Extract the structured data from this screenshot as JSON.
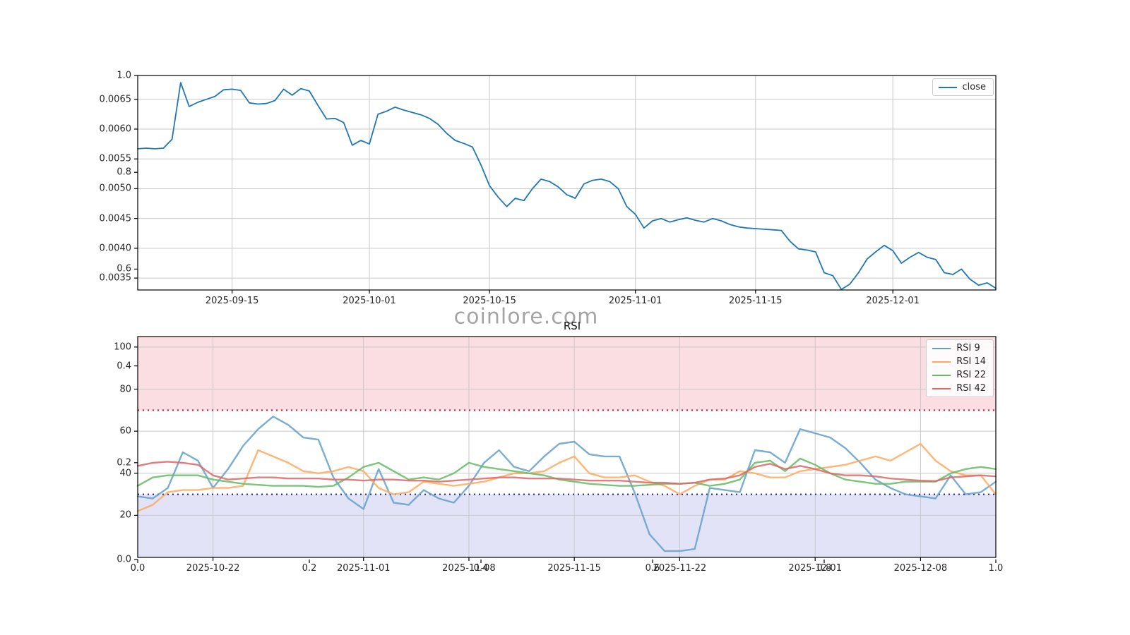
{
  "watermark": "coinlore.com",
  "overlay_axis": {
    "y_tick_labels": [
      "1.0",
      "0.8",
      "0.6",
      "0.4",
      "0.2",
      "0.0"
    ],
    "x_tick_labels": [
      "0.0",
      "0.2",
      "0.4",
      "0.6",
      "0.8",
      "1.0"
    ]
  },
  "chart_data": [
    {
      "type": "line",
      "title": "",
      "legend_position": "upper right",
      "x_start_date": "2025-09-04",
      "x_end_date": "2025-12-13",
      "x_tick_labels": [
        "2025-09-15",
        "2025-10-01",
        "2025-10-15",
        "2025-11-01",
        "2025-11-15",
        "2025-12-01"
      ],
      "x_tick_days": [
        11,
        27,
        41,
        58,
        72,
        88
      ],
      "y_tick_labels": [
        "0.0065",
        "0.0060",
        "0.0055",
        "0.0050",
        "0.0045",
        "0.0040",
        "0.0035"
      ],
      "y_tick_values": [
        0.0065,
        0.006,
        0.0055,
        0.005,
        0.0045,
        0.004,
        0.0035
      ],
      "ylim": [
        0.0033,
        0.0069
      ],
      "grid": true,
      "series": [
        {
          "name": "close",
          "color": "#1f77b4",
          "values": [
            0.00567,
            0.00568,
            0.00567,
            0.00568,
            0.00583,
            0.00678,
            0.00638,
            0.00645,
            0.0065,
            0.00655,
            0.00666,
            0.00667,
            0.00665,
            0.00644,
            0.00642,
            0.00643,
            0.00648,
            0.00667,
            0.00657,
            0.00668,
            0.00664,
            0.0064,
            0.00617,
            0.00618,
            0.00611,
            0.00573,
            0.00581,
            0.00575,
            0.00625,
            0.0063,
            0.00637,
            0.00632,
            0.00628,
            0.00624,
            0.00618,
            0.00608,
            0.00593,
            0.00581,
            0.00576,
            0.0057,
            0.0054,
            0.00505,
            0.00486,
            0.0047,
            0.00484,
            0.0048,
            0.005,
            0.00516,
            0.00512,
            0.00503,
            0.0049,
            0.00484,
            0.00508,
            0.00514,
            0.00516,
            0.00512,
            0.005,
            0.0047,
            0.00457,
            0.00434,
            0.00446,
            0.0045,
            0.00444,
            0.00448,
            0.00451,
            0.00447,
            0.00444,
            0.0045,
            0.00446,
            0.0044,
            0.00436,
            0.00434,
            0.00433,
            0.00432,
            0.00431,
            0.0043,
            0.00412,
            0.00399,
            0.00397,
            0.00394,
            0.00359,
            0.00354,
            0.00331,
            0.0034,
            0.00359,
            0.00382,
            0.00394,
            0.00405,
            0.00396,
            0.00375,
            0.00385,
            0.00393,
            0.00385,
            0.00381,
            0.00359,
            0.00356,
            0.00365,
            0.00348,
            0.00338,
            0.00342,
            0.00333
          ]
        }
      ]
    },
    {
      "type": "line",
      "title": "RSI",
      "legend_position": "upper right",
      "x_start_date": "2025-10-17",
      "x_end_date": "2025-12-13",
      "x_tick_labels": [
        "2025-10-22",
        "2025-11-01",
        "2025-11-08",
        "2025-11-15",
        "2025-11-22",
        "2025-12-01",
        "2025-12-08"
      ],
      "x_tick_days": [
        5,
        15,
        22,
        29,
        36,
        45,
        52
      ],
      "y_tick_labels": [
        "100",
        "80",
        "60",
        "40",
        "20"
      ],
      "y_tick_values": [
        100,
        80,
        60,
        40,
        20
      ],
      "ylim": [
        0,
        105
      ],
      "grid": true,
      "overbought_level": 70,
      "oversold_level": 30,
      "overbought_line_color": "#cc1133",
      "oversold_line_color": "#1a1aae",
      "bands": [
        {
          "name": "overbought-band",
          "from": 70,
          "to": 105,
          "color": "#fbdee2"
        },
        {
          "name": "oversold-band",
          "from": 0,
          "to": 30,
          "color": "#e3e3f8"
        }
      ],
      "series": [
        {
          "name": "RSI 9",
          "color": "#62a0ca",
          "values": [
            29,
            28,
            33,
            50,
            46,
            33,
            42,
            53,
            61,
            67,
            63,
            57,
            56,
            38,
            28,
            23,
            42,
            26,
            25,
            32,
            28,
            26,
            34,
            45,
            51,
            43,
            41,
            48,
            54,
            55,
            49,
            48,
            48,
            31,
            11,
            3,
            3,
            4,
            33,
            32,
            31,
            51,
            50,
            45,
            61,
            59,
            57,
            52,
            45,
            37,
            33,
            30,
            29,
            28,
            39,
            30,
            31,
            36
          ]
        },
        {
          "name": "RSI 14",
          "color": "#ffa85c",
          "values": [
            22,
            25,
            31,
            32,
            32,
            33,
            33,
            34,
            51,
            48,
            45,
            41,
            40,
            41,
            43,
            41,
            33,
            30,
            31,
            36,
            35,
            34,
            35,
            36,
            38,
            40,
            40,
            41,
            45,
            48,
            40,
            38,
            38,
            39,
            36,
            34,
            30,
            34,
            37,
            37,
            41,
            40,
            38,
            38,
            41,
            42,
            43,
            44,
            46,
            48,
            46,
            50,
            54,
            46,
            41,
            39,
            39,
            30
          ]
        },
        {
          "name": "RSI 22",
          "color": "#63bb63",
          "values": [
            34,
            38,
            39,
            39,
            39,
            37,
            36,
            35,
            34.5,
            34,
            34,
            34,
            33.5,
            34,
            38,
            43,
            45,
            41,
            37,
            38,
            37,
            40,
            45,
            43,
            42,
            41,
            40,
            39,
            37,
            36,
            35,
            34.5,
            34,
            34,
            34.5,
            35,
            35,
            35.5,
            34,
            35,
            37,
            45,
            46,
            41,
            47,
            44,
            40,
            37,
            36,
            35,
            35,
            36,
            36,
            36,
            40,
            42,
            43,
            42
          ]
        },
        {
          "name": "RSI 42",
          "color": "#dd6666",
          "values": [
            43.5,
            45,
            45.5,
            45,
            44,
            39,
            37,
            37.5,
            38,
            38,
            37.5,
            37.5,
            37.5,
            37,
            37,
            36.5,
            37,
            37,
            36.5,
            36.5,
            36,
            36.5,
            37,
            37.5,
            38,
            38,
            37.5,
            37.5,
            37.5,
            37,
            36.5,
            36.5,
            36.5,
            36,
            35.5,
            35.5,
            35,
            35.5,
            37,
            37.5,
            39,
            43,
            44.5,
            42,
            43.5,
            42,
            40,
            39,
            39,
            38.5,
            37.5,
            37,
            36.5,
            36.3,
            38,
            38.5,
            39,
            38.5
          ]
        }
      ]
    }
  ]
}
